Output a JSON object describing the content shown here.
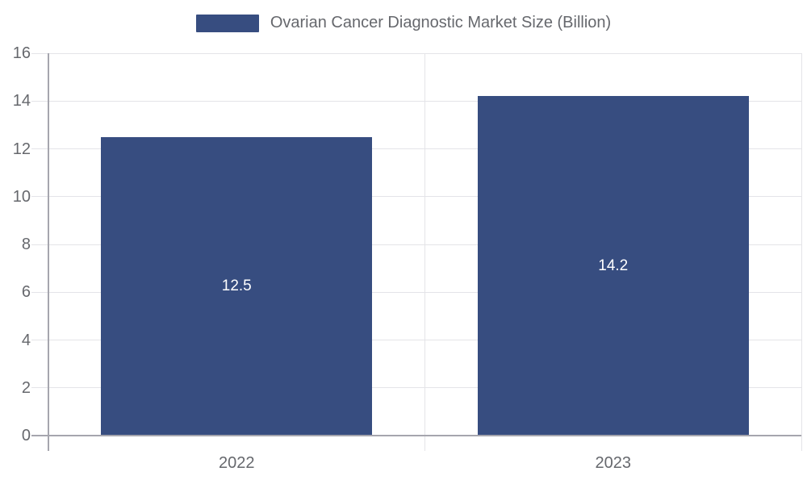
{
  "chart_data": {
    "type": "bar",
    "title": "Ovarian Cancer Diagnostic Market Size (Billion)",
    "legend_entries": [
      "Ovarian Cancer Diagnostic Market Size (Billion)"
    ],
    "legend_position": "top-center",
    "categories": [
      "2022",
      "2023"
    ],
    "values": [
      12.5,
      14.2
    ],
    "value_labels": [
      "12.5",
      "14.2"
    ],
    "xlabel": "",
    "ylabel": "",
    "ylim": [
      0,
      16
    ],
    "yticks": [
      0,
      2,
      4,
      6,
      8,
      10,
      12,
      14,
      16
    ],
    "ytick_labels": [
      "0",
      "2",
      "4",
      "6",
      "8",
      "10",
      "12",
      "14",
      "16"
    ],
    "grid": true,
    "colors": {
      "bar": "#374d80",
      "bar_value_label": "#ffffff",
      "axis_label": "#66686d",
      "axis_line": "#a6a6ae",
      "gridline": "#e4e4e8"
    }
  }
}
